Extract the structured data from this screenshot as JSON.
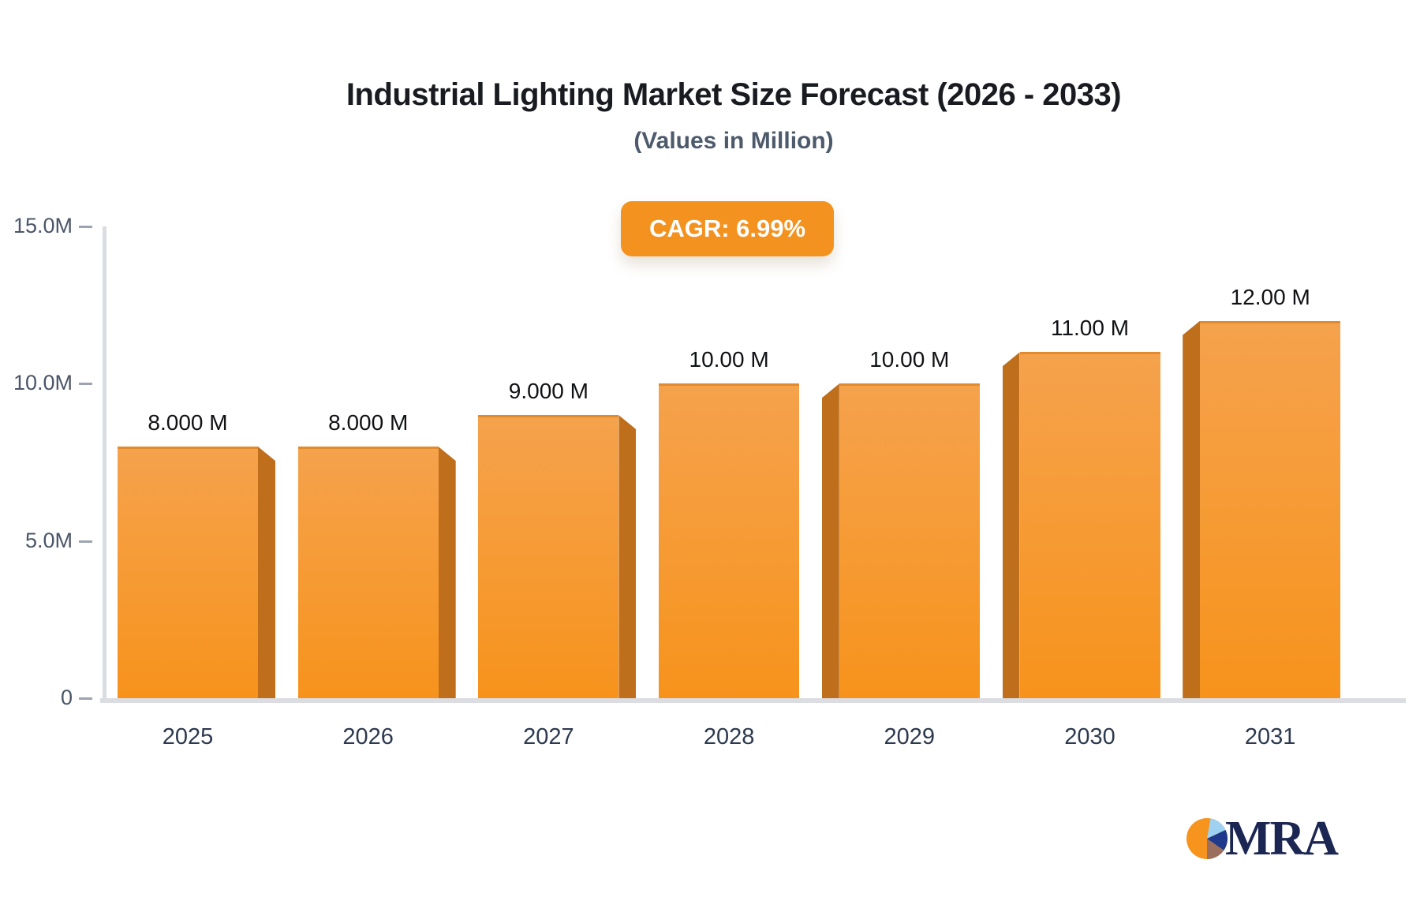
{
  "header": {
    "title": "Industrial Lighting Market Size Forecast (2026 - 2033)",
    "subtitle": "(Values in Million)"
  },
  "badge": {
    "label": "CAGR: 6.99%",
    "bg": "#f4921f",
    "text_color": "#ffffff"
  },
  "chart_data": {
    "type": "bar",
    "title": "Industrial Lighting Market Size Forecast (2026 - 2033)",
    "subtitle": "(Values in Million)",
    "categories": [
      "2025",
      "2026",
      "2027",
      "2028",
      "2029",
      "2030",
      "2031"
    ],
    "values": [
      8,
      8,
      9,
      10,
      10,
      11,
      12
    ],
    "value_labels": [
      "8.000 M",
      "8.000 M",
      "9.000 M",
      "10.00 M",
      "10.00 M",
      "11.00 M",
      "12.00 M"
    ],
    "unit": "Million",
    "xlabel": "",
    "ylabel": "",
    "ylim": [
      0,
      15
    ],
    "yticks": [
      {
        "value": 0,
        "label": "0"
      },
      {
        "value": 5,
        "label": "5.0M"
      },
      {
        "value": 10,
        "label": "10.0M"
      },
      {
        "value": 15,
        "label": "15.0M"
      }
    ],
    "grid": false,
    "legend": null,
    "annotation": "CAGR: 6.99%",
    "colors": {
      "bar_top": "#f5a24d",
      "bar_bottom": "#f7931c",
      "bar_side": "#bf6e1c",
      "axis": "#dadce2",
      "tick_label": "#4a5568",
      "category_label": "#2c394e",
      "value_label": "#101114"
    }
  },
  "logo": {
    "text": "MRA",
    "colors": {
      "pie_main": "#f7941e",
      "pie_light_blue": "#9fd1f1",
      "pie_dark_blue": "#1f3a8c",
      "pie_brown": "#9b6f5e",
      "text": "#1b2752"
    }
  }
}
